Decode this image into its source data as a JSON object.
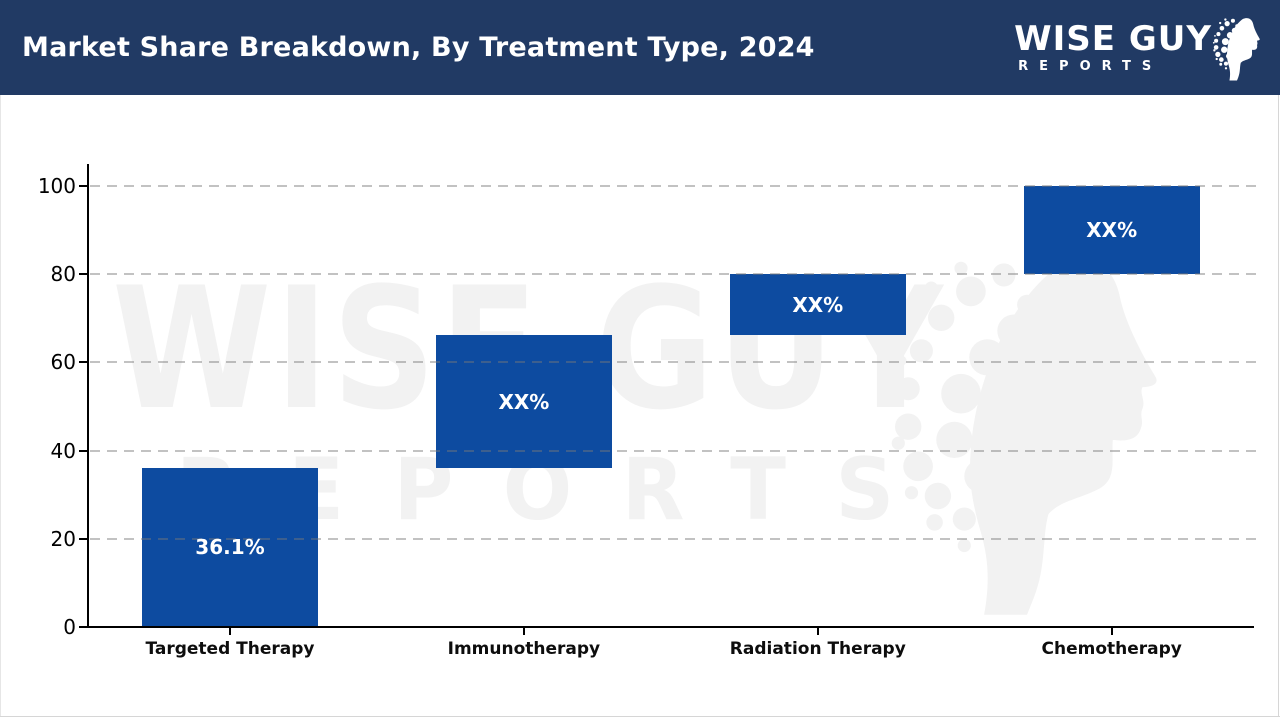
{
  "header": {
    "title": "Market Share Breakdown, By Treatment Type, 2024",
    "background_color": "#213a64",
    "logo": {
      "wordmark": "WISE GUY",
      "subtext": "REPORTS"
    }
  },
  "watermark": {
    "line1": "WISE GUY",
    "line2": "REPORTS",
    "color": "#f2f2f2"
  },
  "chart_data": {
    "type": "bar",
    "subtype": "waterfall",
    "title": "Market Share Breakdown, By Treatment Type, 2024",
    "categories": [
      "Targeted Therapy",
      "Immunotherapy",
      "Radiation Therapy",
      "Chemotherapy"
    ],
    "segments": [
      {
        "category": "Targeted Therapy",
        "start": 0,
        "end": 36.1,
        "label": "36.1%"
      },
      {
        "category": "Immunotherapy",
        "start": 36.1,
        "end": 66.1,
        "label": "XX%"
      },
      {
        "category": "Radiation Therapy",
        "start": 66.1,
        "end": 80.1,
        "label": "XX%"
      },
      {
        "category": "Chemotherapy",
        "start": 80.1,
        "end": 100,
        "label": "XX%"
      }
    ],
    "y_ticks": [
      0,
      20,
      40,
      60,
      80,
      100
    ],
    "ylim": [
      0,
      105
    ],
    "xlabel": "",
    "ylabel": "",
    "bar_color": "#0d4ba0",
    "value_label_color": "#ffffff",
    "axis_color": "#000000",
    "grid": {
      "horizontal": true,
      "style": "dashed",
      "color": "#cccccc",
      "on_top_of_bars": true
    },
    "legend": "none"
  }
}
